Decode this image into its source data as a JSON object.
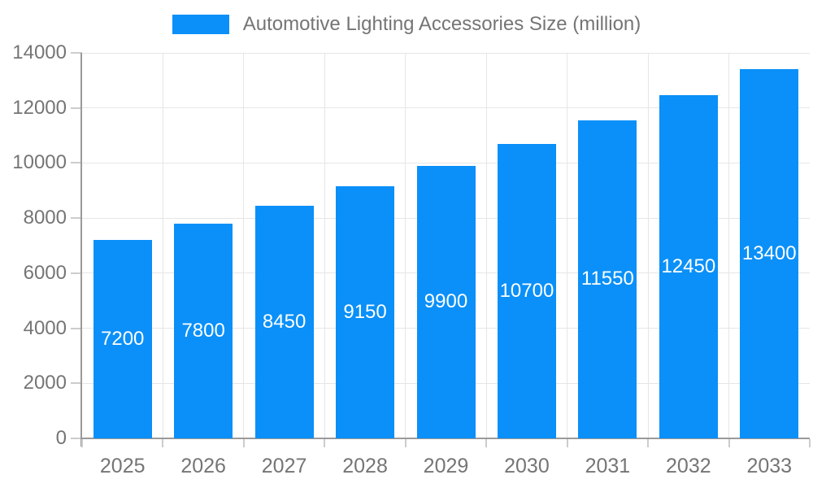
{
  "chart_data": {
    "type": "bar",
    "title": "Automotive Lighting Accessories Size (million)",
    "legend": {
      "label": "Automotive Lighting Accessories Size (million)",
      "position": "top"
    },
    "categories": [
      "2025",
      "2026",
      "2027",
      "2028",
      "2029",
      "2030",
      "2031",
      "2032",
      "2033"
    ],
    "values": [
      7200,
      7800,
      8450,
      9150,
      9900,
      10700,
      11550,
      12450,
      13400
    ],
    "xlabel": "",
    "ylabel": "",
    "ylim": [
      0,
      14000
    ],
    "yticks": [
      0,
      2000,
      4000,
      6000,
      8000,
      10000,
      12000,
      14000
    ],
    "grid": true,
    "colors": {
      "bar": "#0a90f8",
      "value_label": "#ffffff",
      "axis_text": "#757575",
      "gridline": "#e6e6e6",
      "axis_line": "#9a9a9a"
    }
  }
}
